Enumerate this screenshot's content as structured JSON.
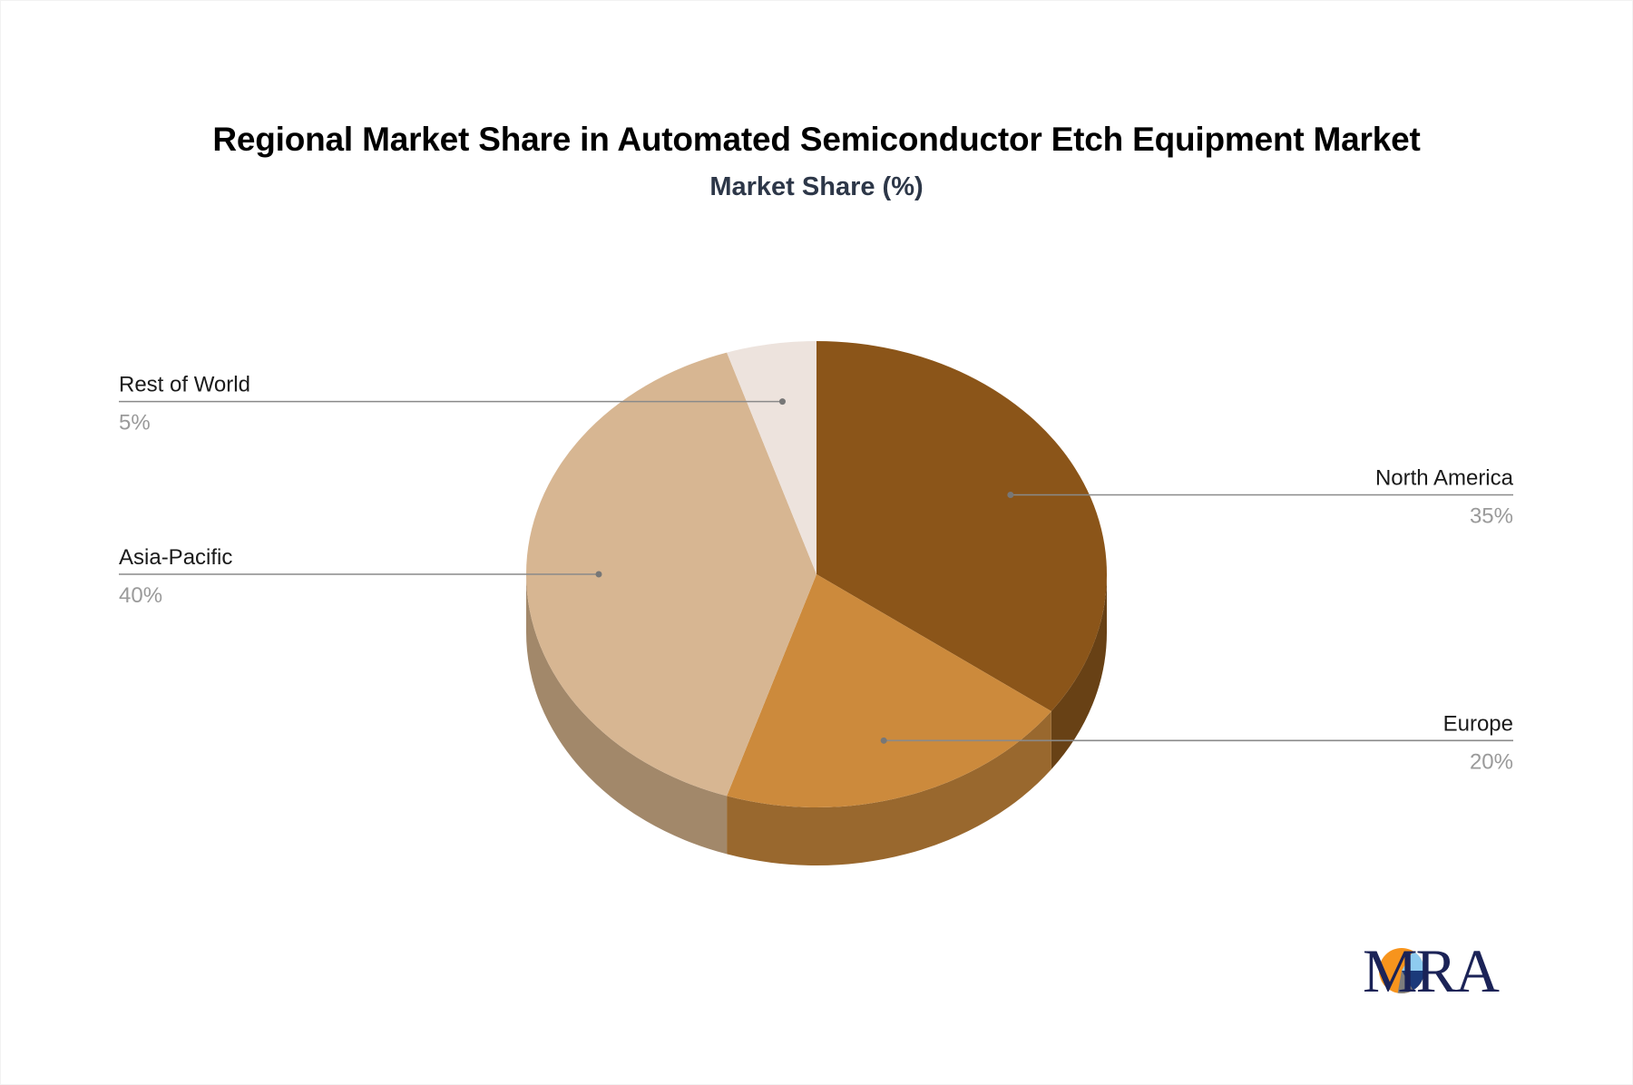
{
  "chart_data": {
    "type": "pie",
    "title": "Regional Market Share in Automated Semiconductor Etch Equipment Market",
    "subtitle": "Market Share (%)",
    "categories": [
      "North America",
      "Europe",
      "Asia-Pacific",
      "Rest of World"
    ],
    "values": [
      35,
      20,
      40,
      5
    ],
    "value_labels": [
      "35%",
      "20%",
      "40%",
      "5%"
    ],
    "colors": [
      "#8b5519",
      "#cc8a3c",
      "#d7b692",
      "#ede3dd"
    ],
    "side_colors": [
      "#684115",
      "#99682e",
      "#a2886a",
      "#b2aaa5"
    ],
    "style": "3d-tilted",
    "legend": "callout-labels",
    "label_sides": [
      "right",
      "right",
      "left",
      "left"
    ]
  },
  "branding": {
    "logo_text": "MRA",
    "logo_colors": {
      "orange": "#f7941d",
      "light_blue": "#8ecbef",
      "navy": "#1b3a7a",
      "gray": "#7d7d7d",
      "text": "#1b2357"
    }
  }
}
